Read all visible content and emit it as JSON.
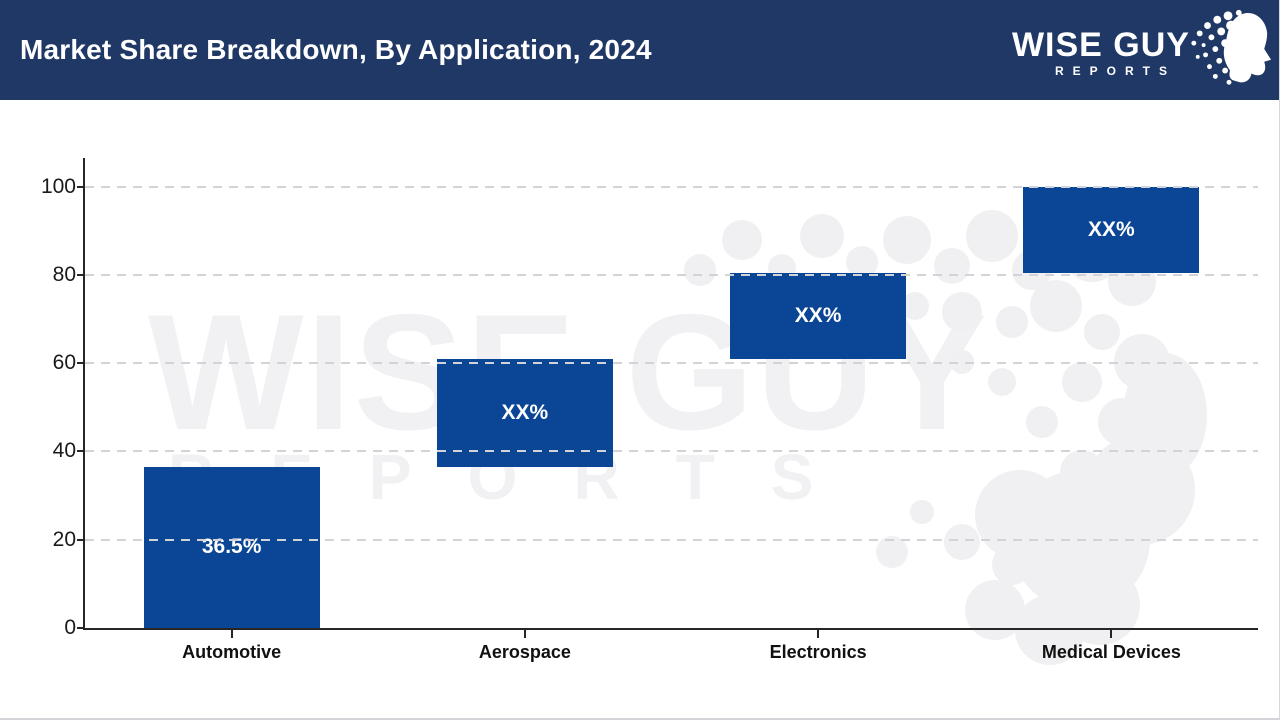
{
  "header": {
    "title": "Market Share Breakdown, By Application, 2024",
    "bg_color": "#1f3865",
    "logo": {
      "name": "WISE GUY",
      "subtitle": "REPORTS",
      "face_icon": "dotted-head-profile"
    }
  },
  "watermark": {
    "line1": "WISE GUY",
    "line2": "REPORTS",
    "color": "#f1f1f3"
  },
  "chart_data": {
    "type": "bar",
    "subtype": "waterfall",
    "title": "Market Share Breakdown, By Application, 2024",
    "categories": [
      "Automotive",
      "Aerospace",
      "Electronics",
      "Medical Devices"
    ],
    "segments": [
      {
        "category": "Automotive",
        "start": 0,
        "end": 36.5,
        "label": "36.5%"
      },
      {
        "category": "Aerospace",
        "start": 36.5,
        "end": 61,
        "label": "XX%"
      },
      {
        "category": "Electronics",
        "start": 61,
        "end": 80.5,
        "label": "XX%"
      },
      {
        "category": "Medical Devices",
        "start": 80.5,
        "end": 100,
        "label": "XX%"
      }
    ],
    "values": [
      36.5,
      24.5,
      19.5,
      19.5
    ],
    "unit": "%",
    "yticks": [
      0,
      20,
      40,
      60,
      80,
      100
    ],
    "ylim": [
      0,
      106.5
    ],
    "bar_color": "#0b4596",
    "axis_color": "#262626",
    "grid": "dashed-horizontal",
    "grid_color": "#d3d3d7",
    "legend": "none"
  }
}
